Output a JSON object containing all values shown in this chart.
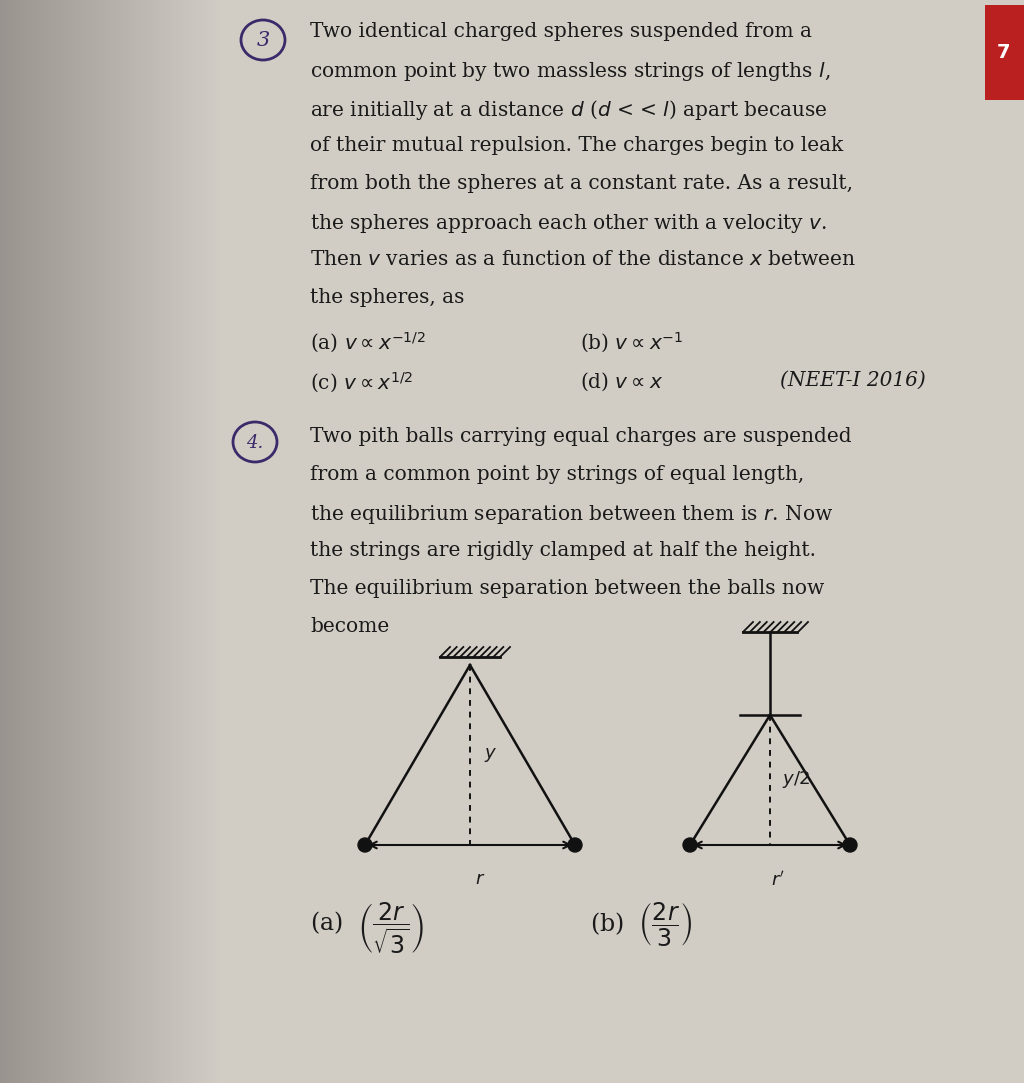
{
  "fig_width": 10.24,
  "fig_height": 10.83,
  "dpi": 100,
  "bg_left_color": "#b8b4ae",
  "bg_right_color": "#d8d5cf",
  "page_bg": "#ccc9c2",
  "text_color": "#1a1a1a",
  "diagram_color": "#111111",
  "red_tab_color": "#aa2222",
  "q3_number": "3",
  "q4_number": "4.",
  "q3_line1": "Two identical charged spheres suspended from a",
  "q3_line2": "common point by two massless strings of lengths l,",
  "q3_line3": "are initially at a distance d (d < < l) apart because",
  "q3_line4": "of their mutual repulsion. The charges begin to leak",
  "q3_line5": "from both the spheres at a constant rate. As a result,",
  "q3_line6": "the spheres approach each other with a velocity v.",
  "q3_line7": "Then v varies as a function of the distance x between",
  "q3_line8": "the spheres, as",
  "opt_a": "(a)  v \\propto x^{-1/2}",
  "opt_b": "(b)  v \\propto x^{-1}",
  "opt_c": "(c)  v \\propto x^{1/2}",
  "opt_d": "(d)  v \\propto x",
  "neet": "(NEET-I 2016)",
  "q4_line1": "Two pith balls carrying equal charges are suspended",
  "q4_line2": "from a common point by strings of equal length,",
  "q4_line3": "the equilibrium separation between them is r. Now",
  "q4_line4": "the strings are rigidly clamped at half the height.",
  "q4_line5": "The equilibrium separation between the balls now",
  "q4_line6": "become",
  "ans_a_num": "2r",
  "ans_a_den": "\\sqrt{3}",
  "ans_b_num": "2r",
  "ans_b_den": "3"
}
